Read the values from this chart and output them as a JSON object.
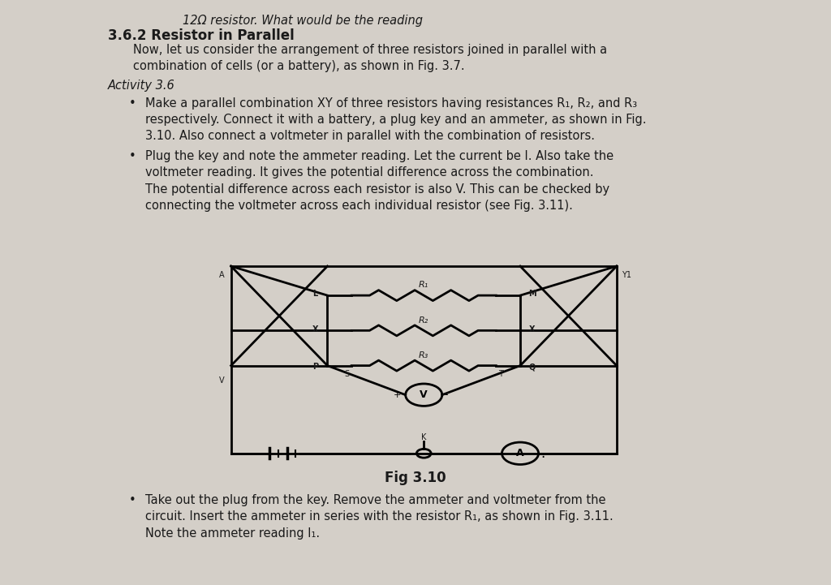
{
  "title_line1": "12Ω resistor. What would be the reading",
  "section_title": "3.6.2 Resistor in Parallel",
  "para1": "Now, let us consider the arrangement of three resistors joined in parallel with a\ncombination of cells (or a battery), as shown in Fig. 3.7.",
  "activity_title": "Activity 3.6",
  "bullet1_line1": "Make a parallel combination XY of three resistors having resistances R₁, R₂, and R₃",
  "bullet1_line2": "respectively. Connect it with a battery, a plug key and an ammeter, as shown in Fig.",
  "bullet1_line3": "3.10. Also connect a voltmeter in parallel with the combination of resistors.",
  "bullet2_line1": "Plug the key and note the ammeter reading. Let the current be I. Also take the",
  "bullet2_line2": "voltmeter reading. It gives the potential difference across the combination.",
  "bullet2_line3": "The potential difference across each resistor is also V. This can be checked by",
  "bullet2_line4": "connecting the voltmeter across each individual resistor (see Fig. 3.11).",
  "fig_caption": "Fig 3.10",
  "bullet3_line1": "Take out the plug from the key. Remove the ammeter and voltmeter from the",
  "bullet3_line2": "circuit. Insert the ammeter in series with the resistor R₁, as shown in Fig. 3.11.",
  "bullet3_line3": "Note the ammeter reading I₁.",
  "bg_color": "#d4cfc8",
  "text_color": "#1a1a1a",
  "fig_bg": "#c8c3bc"
}
